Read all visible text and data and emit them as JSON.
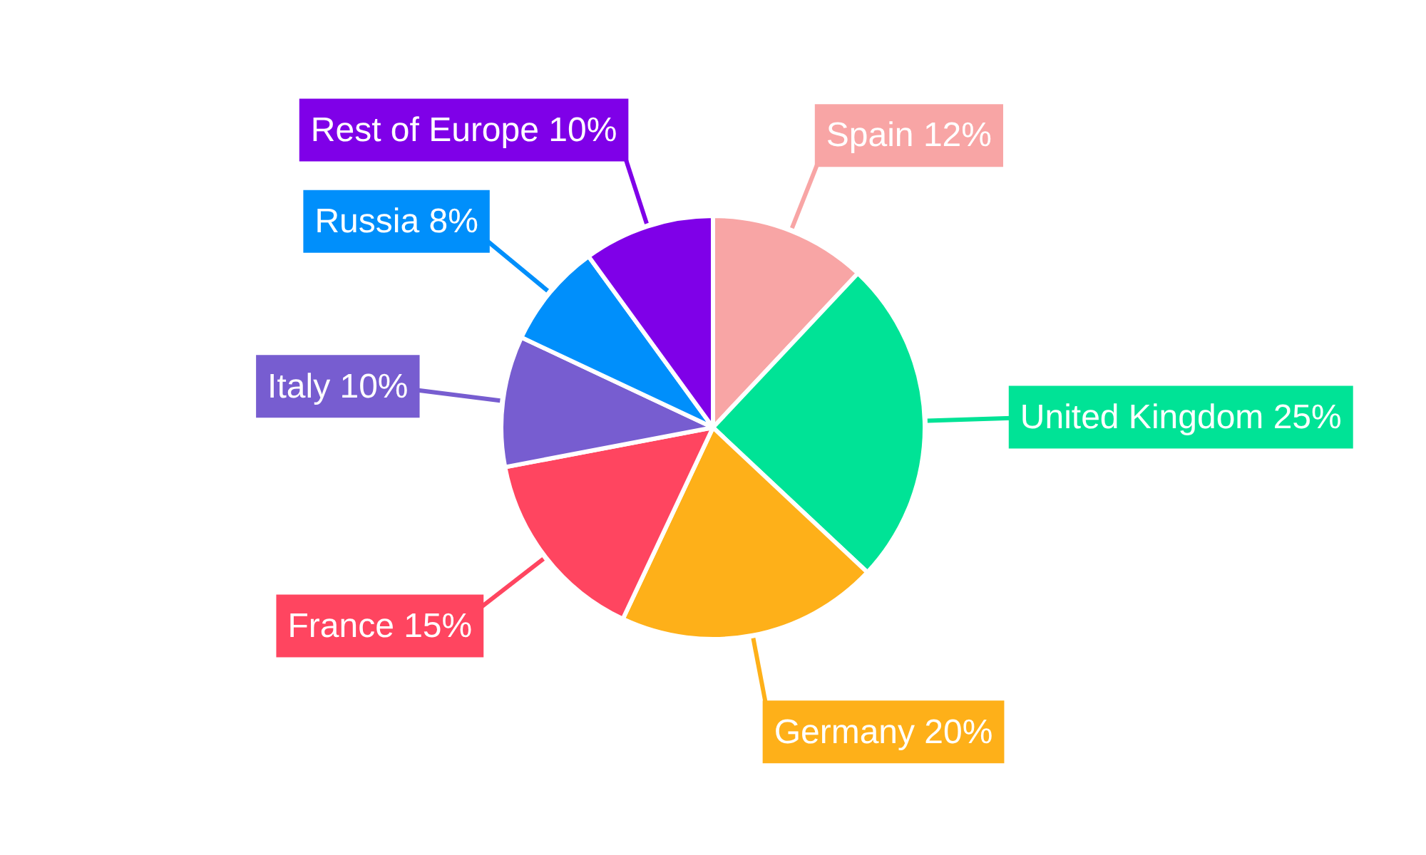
{
  "chart_data": {
    "type": "pie",
    "categories": [
      "Spain",
      "United Kingdom",
      "Germany",
      "France",
      "Italy",
      "Russia",
      "Rest of Europe"
    ],
    "values": [
      12,
      25,
      20,
      15,
      10,
      8,
      10
    ],
    "colors": [
      "#f8a5a5",
      "#00e396",
      "#feb019",
      "#ff4560",
      "#775dd0",
      "#008ffb",
      "#7f00e8"
    ],
    "value_labels": [
      "12%",
      "25%",
      "20%",
      "15%",
      "10%",
      "8%",
      "10%"
    ],
    "legend": false
  }
}
